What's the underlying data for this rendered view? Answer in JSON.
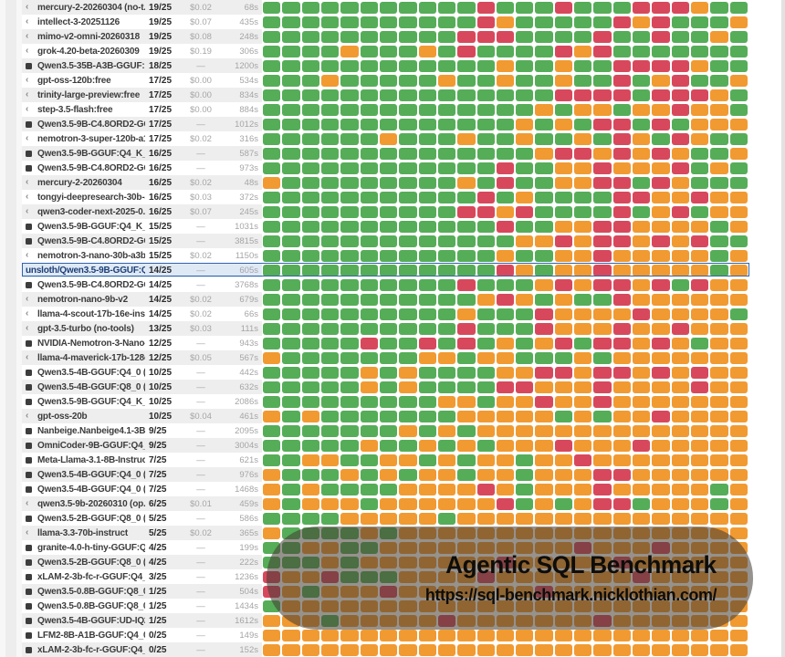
{
  "overlay": {
    "title": "Agentic SQL Benchmark",
    "url": "https://sql-benchmark.nicklothian.com/"
  },
  "legend": {
    "pass_color": "#55ad58",
    "partial_color": "#f19a31",
    "fail_color": "#d8485c",
    "selected_border_color": "#2f63ad",
    "selected_bg_color": "#dfe9f6"
  },
  "table": {
    "columns": [
      "model",
      "score",
      "cost",
      "time"
    ],
    "rows": [
      {
        "icon": "api",
        "name": "mercury-2-20260304 (no-t...",
        "score": "19/25",
        "cost": "$0.02",
        "time": "68s",
        "cells": "GGGGGGGGGGGRGGGRGGGRRROGG"
      },
      {
        "icon": "api",
        "name": "intellect-3-20251126",
        "score": "19/25",
        "cost": "$0.07",
        "time": "435s",
        "cells": "GGGGGGGGGGGROGGGGGRORGGGO"
      },
      {
        "icon": "api",
        "name": "mimo-v2-omni-20260318",
        "score": "19/25",
        "cost": "$0.08",
        "time": "248s",
        "cells": "GGGGGGGGGGRRRGGGGRGGRGGOG"
      },
      {
        "icon": "api",
        "name": "grok-4.20-beta-20260309",
        "score": "19/25",
        "cost": "$0.19",
        "time": "306s",
        "cells": "GGGGOGGGOGRGGGGRORGGGGGGG"
      },
      {
        "icon": "local",
        "name": "Qwen3.5-35B-A3B-GGUF:U...",
        "score": "18/25",
        "cost": "—",
        "time": "1200s",
        "cells": "GGGGGGGGGGGGOGGOGGRRRROGG"
      },
      {
        "icon": "api",
        "name": "gpt-oss-120b:free",
        "score": "17/25",
        "cost": "$0.00",
        "time": "534s",
        "cells": "GGGOGGGGGOGGOGGOGGRGORGGO"
      },
      {
        "icon": "api",
        "name": "trinity-large-preview:free",
        "score": "17/25",
        "cost": "$0.00",
        "time": "834s",
        "cells": "GGGGGGGGGGGGGGGRRRRGRRROG"
      },
      {
        "icon": "api",
        "name": "step-3.5-flash:free",
        "score": "17/25",
        "cost": "$0.00",
        "time": "884s",
        "cells": "GGGGGGGGGGGGGGOGOOGOOROOG"
      },
      {
        "icon": "local",
        "name": "Qwen3.5-9B-C4.8ORD2-GG...",
        "score": "17/25",
        "cost": "—",
        "time": "1012s",
        "cells": "GGGGGGGGGGGGGOGOGRRGRGOOO"
      },
      {
        "icon": "api",
        "name": "nemotron-3-super-120b-a1...",
        "score": "17/25",
        "cost": "$0.02",
        "time": "316s",
        "cells": "GGGGGGOGGGOGGOGGOGROGROGG"
      },
      {
        "icon": "local",
        "name": "Qwen3.5-9B-GGUF:Q4_K_...",
        "score": "16/25",
        "cost": "—",
        "time": "587s",
        "cells": "GGGGGGGGGGGGGGORROROROGGO"
      },
      {
        "icon": "local",
        "name": "Qwen3.5-9B-C4.8ORD2-GG...",
        "score": "16/25",
        "cost": "—",
        "time": "973s",
        "cells": "GGGGGGGGGGGGRGGOOROOORGOG"
      },
      {
        "icon": "api",
        "name": "mercury-2-20260304",
        "score": "16/25",
        "cost": "$0.02",
        "time": "48s",
        "cells": "OGGGGGGGGGOGRGGOORRGROGGG"
      },
      {
        "icon": "api",
        "name": "tongyi-deepresearch-30b-a...",
        "score": "16/25",
        "cost": "$0.03",
        "time": "372s",
        "cells": "GGGGGGGGGGGRGOGGGGRROOROO"
      },
      {
        "icon": "api",
        "name": "qwen3-coder-next-2025-0...",
        "score": "16/25",
        "cost": "$0.07",
        "time": "245s",
        "cells": "GGGGGGGGGGRRORGGGGRGORGOO"
      },
      {
        "icon": "local",
        "name": "Qwen3.5-9B-GGUF:Q4_K_...",
        "score": "15/25",
        "cost": "—",
        "time": "1031s",
        "cells": "GGGGGGGGGGGGRGGOORROOOOGO"
      },
      {
        "icon": "local",
        "name": "Qwen3.5-9B-C4.8ORD2-GG...",
        "score": "15/25",
        "cost": "—",
        "time": "3815s",
        "cells": "GGGGGGGGGGGGGOORORRORORGG"
      },
      {
        "icon": "api",
        "name": "nemotron-3-nano-30b-a3b",
        "score": "15/25",
        "cost": "$0.02",
        "time": "1150s",
        "cells": "GGGGGGGGGGGGOGGOOROOOOOGO"
      },
      {
        "icon": "none",
        "name": "unsloth/Qwen3.5-9B-GGUF:Q...",
        "score": "14/25",
        "cost": "—",
        "time": "605s",
        "cells": "GGGGGGGGGGGGROGOOROOOOOGO",
        "selected": true
      },
      {
        "icon": "local",
        "name": "Qwen3.5-9B-C4.8ORD2-GG...",
        "score": "14/25",
        "cost": "—",
        "time": "3768s",
        "cells": "GGGGGGGGGGRGGGORORRORGROO"
      },
      {
        "icon": "api",
        "name": "nemotron-nano-9b-v2",
        "score": "14/25",
        "cost": "$0.02",
        "time": "679s",
        "cells": "GGGGGGGGGGGOROGOGGROOOOOO"
      },
      {
        "icon": "api",
        "name": "llama-4-scout-17b-16e-inst...",
        "score": "14/25",
        "cost": "$0.02",
        "time": "66s",
        "cells": "GGGGGGGGGGOGGGROOOOROOOOG"
      },
      {
        "icon": "api",
        "name": "gpt-3.5-turbo (no-tools)",
        "score": "13/25",
        "cost": "$0.03",
        "time": "111s",
        "cells": "GGGGGGGGGGRGGGROOOROOROOO"
      },
      {
        "icon": "local",
        "name": "NVIDIA-Nemotron-3-Nano-...",
        "score": "12/25",
        "cost": "—",
        "time": "943s",
        "cells": "GGGGGRGGRGRGOGORGRROROGOO"
      },
      {
        "icon": "api",
        "name": "llama-4-maverick-17b-128e...",
        "score": "12/25",
        "cost": "$0.05",
        "time": "567s",
        "cells": "OGGGGGGGOOGOOGGGOGOOOOOOO"
      },
      {
        "icon": "local",
        "name": "Qwen3.5-4B-GGUF:Q4_0 (n...",
        "score": "10/25",
        "cost": "—",
        "time": "442s",
        "cells": "GGGGGOGOGGGGOORRORROROROO"
      },
      {
        "icon": "local",
        "name": "Qwen3.5-4B-GGUF:Q8_0 (n...",
        "score": "10/25",
        "cost": "—",
        "time": "632s",
        "cells": "GGGGGOGOGGGGRROOOROOOOROO"
      },
      {
        "icon": "local",
        "name": "Qwen3.5-9B-GGUF:Q4_K_...",
        "score": "10/25",
        "cost": "—",
        "time": "2086s",
        "cells": "GGGGGGGGGOOGOOROOROOOOOOO"
      },
      {
        "icon": "api",
        "name": "gpt-oss-20b",
        "score": "10/25",
        "cost": "$0.04",
        "time": "461s",
        "cells": "OGOGGGGGGGOOOOOGOGOOROOOO"
      },
      {
        "icon": "local",
        "name": "Nanbeige.Nanbeige4.1-3B-...",
        "score": "9/25",
        "cost": "—",
        "time": "2095s",
        "cells": "GGGGGGGOGOGOOOOOOOOOOOOOO"
      },
      {
        "icon": "local",
        "name": "OmniCoder-9B-GGUF:Q4_K...",
        "score": "9/25",
        "cost": "—",
        "time": "3004s",
        "cells": "GGGGGOGGOGOGOOOROOOROOOOO"
      },
      {
        "icon": "local",
        "name": "Meta-Llama-3.1-8B-Instruc...",
        "score": "7/25",
        "cost": "—",
        "time": "621s",
        "cells": "GGOOGGOOGOGOOGOOROOOOOOOO"
      },
      {
        "icon": "local",
        "name": "Qwen3.5-4B-GGUF:Q4_0 (t...",
        "score": "7/25",
        "cost": "—",
        "time": "976s",
        "cells": "OGGGOGOGOOGOOGOOORROOOOOO"
      },
      {
        "icon": "local",
        "name": "Qwen3.5-4B-GGUF:Q4_0 (g...",
        "score": "7/25",
        "cost": "—",
        "time": "1468s",
        "cells": "OGOGGGGOOOOROGOOOROOOOOGO"
      },
      {
        "icon": "api",
        "name": "qwen3.5-9b-20260310 (op...",
        "score": "6/25",
        "cost": "$0.01",
        "time": "459s",
        "cells": "OGOOOGOOOOOORGOGORRGOOOGO"
      },
      {
        "icon": "local",
        "name": "Qwen3.5-2B-GGUF:Q8_0 (t...",
        "score": "5/25",
        "cost": "—",
        "time": "586s",
        "cells": "GGGGOOOOOGOOOOOOOOOOOOOOO"
      },
      {
        "icon": "api",
        "name": "llama-3.3-70b-instruct",
        "score": "5/25",
        "cost": "$0.02",
        "time": "365s",
        "cells": "OGGGGOGOOOOOOOOOOOOOOOOOO"
      },
      {
        "icon": "local",
        "name": "granite-4.0-h-tiny-GGUF:Q...",
        "score": "4/25",
        "cost": "—",
        "time": "199s",
        "cells": "GGOOGGOOOOOOOOOOROOOROOOO"
      },
      {
        "icon": "local",
        "name": "Qwen3.5-2B-GGUF:Q8_0 (n...",
        "score": "4/25",
        "cost": "—",
        "time": "222s",
        "cells": "GGGOGOOOOOOOROOOOOROOOOOO"
      },
      {
        "icon": "local",
        "name": "xLAM-2-3b-fc-r-GGUF:Q4_...",
        "score": "3/25",
        "cost": "—",
        "time": "1236s",
        "cells": "ROORGGGOOOOROOOOOOOROOOOO"
      },
      {
        "icon": "local",
        "name": "Qwen3.5-0.8B-GGUF:Q8_0 ...",
        "score": "1/25",
        "cost": "—",
        "time": "504s",
        "cells": "ROGOOOROOOOOOOROOOOOOOOOO"
      },
      {
        "icon": "local",
        "name": "Qwen3.5-0.8B-GGUF:Q8_0 ...",
        "score": "1/25",
        "cost": "—",
        "time": "1434s",
        "cells": "GOOOOOOOOOOOOOOOOOOOOOOOO"
      },
      {
        "icon": "local",
        "name": "Qwen3.5-4B-GGUF:UD-IQ2...",
        "score": "1/25",
        "cost": "—",
        "time": "1612s",
        "cells": "OOOGOOOOOROOOOOOOROOOOOOO"
      },
      {
        "icon": "local",
        "name": "LFM2-8B-A1B-GGUF:Q4_0",
        "score": "0/25",
        "cost": "—",
        "time": "149s",
        "cells": "OOOOOOOOOOOOOOOOOOOOOOOOO"
      },
      {
        "icon": "local",
        "name": "xLAM-2-3b-fc-r-GGUF:Q4_...",
        "score": "0/25",
        "cost": "—",
        "time": "152s",
        "cells": "OOOOOOOOOOOOOOOOOOOOOOOOO"
      }
    ]
  }
}
